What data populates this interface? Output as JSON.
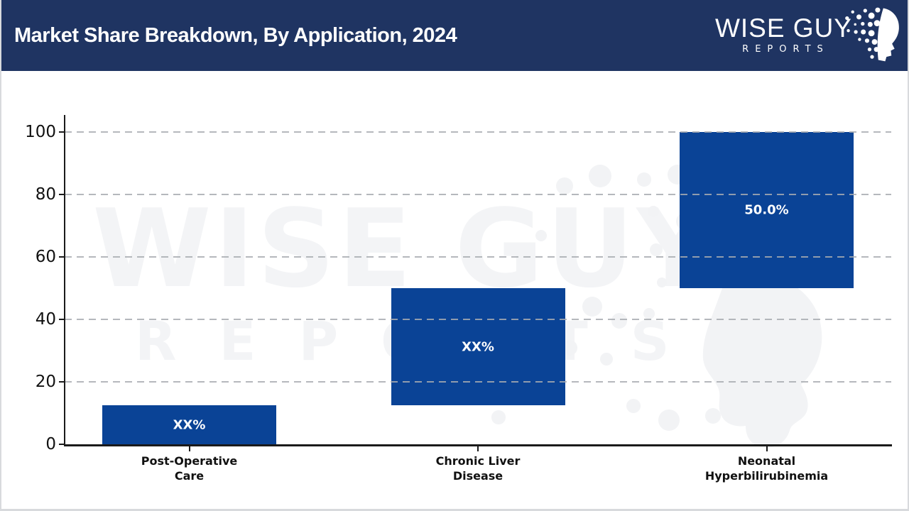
{
  "header": {
    "title": "Market Share Breakdown, By Application, 2024",
    "logo": {
      "line1": "WISE GUY",
      "line2": "REPORTS"
    }
  },
  "watermark": {
    "line1": "WISE GUY",
    "line2": "REPORTS"
  },
  "colors": {
    "header_bg": "#1f3462",
    "bar_blue": "#0a4396",
    "axis": "#1a1a1a",
    "grid_dash": "#a8acb1",
    "watermark_gray": "#f3f4f6",
    "page_border": "#d8dadd",
    "title_text": "#ffffff",
    "bar_label_text": "#ffffff"
  },
  "chart_data": {
    "type": "bar",
    "subtype": "floating-waterfall",
    "title": "Market Share Breakdown, By Application, 2024",
    "categories": [
      "Post-Operative Care",
      "Chronic Liver Disease",
      "Neonatal Hyperbilirubinemia"
    ],
    "category_label_lines": [
      [
        "Post-Operative",
        "Care"
      ],
      [
        "Chronic Liver",
        "Disease"
      ],
      [
        "Neonatal",
        "Hyperbilirubinemia"
      ]
    ],
    "series": [
      {
        "name": "Market Share (%)",
        "segments": [
          {
            "category": "Post-Operative Care",
            "start": 0,
            "end": 12.5,
            "label": "XX%"
          },
          {
            "category": "Chronic Liver Disease",
            "start": 12.5,
            "end": 50,
            "label": "XX%"
          },
          {
            "category": "Neonatal Hyperbilirubinemia",
            "start": 50,
            "end": 100,
            "label": "50.0%"
          }
        ]
      }
    ],
    "xlabel": "",
    "ylabel": "",
    "yticks": [
      0,
      20,
      40,
      60,
      80,
      100
    ],
    "ylim": [
      0,
      105
    ],
    "grid": "horizontal dashed, drawn above bars",
    "legend_position": "none",
    "bar_color": "#0a4396"
  }
}
